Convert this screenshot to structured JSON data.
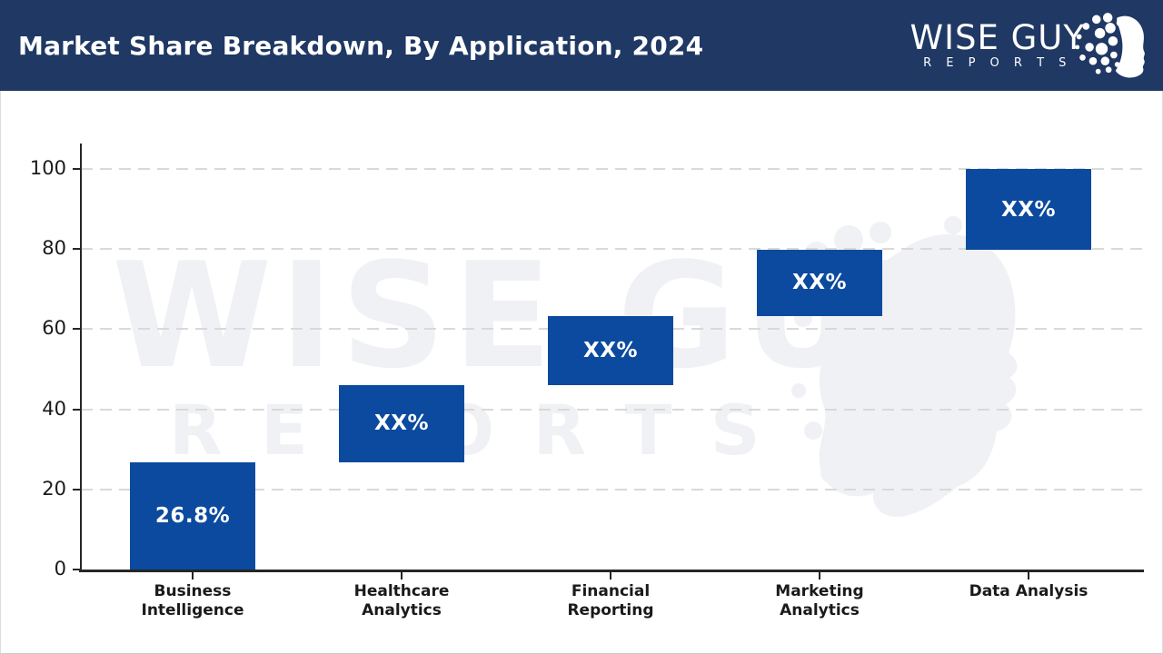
{
  "colors": {
    "header_bg": "#1f3864",
    "bar": "#0b4a9e",
    "axis": "#262626",
    "grid": "#d9d9d9",
    "tick_label": "#1a1a1a",
    "bar_label": "#ffffff",
    "watermark": "#f0f1f4"
  },
  "header": {
    "title": "Market Share Breakdown, By Application, 2024",
    "logo": {
      "line1": "WISE GUY",
      "line2": "R E P O R T S"
    }
  },
  "watermark": {
    "line1": "WISE GUY",
    "line2": "R E P O R T S"
  },
  "chart_data": {
    "type": "bar",
    "subtype": "waterfall",
    "title": "Market Share Breakdown, By Application, 2024",
    "xlabel": "",
    "ylabel": "",
    "ylim": [
      0,
      100
    ],
    "yticks": [
      0,
      20,
      40,
      60,
      80,
      100
    ],
    "grid": "horizontal-dashed",
    "legend": "none",
    "categories": [
      [
        "Business",
        "Intelligence"
      ],
      [
        "Healthcare",
        "Analytics"
      ],
      [
        "Financial",
        "Reporting"
      ],
      [
        "Marketing",
        "Analytics"
      ],
      [
        "Data Analysis"
      ]
    ],
    "segments": [
      {
        "category": "Business Intelligence",
        "label": "26.8%",
        "start": 0,
        "end": 26.8
      },
      {
        "category": "Healthcare Analytics",
        "label": "XX%",
        "start": 26.8,
        "end": 46.0
      },
      {
        "category": "Financial Reporting",
        "label": "XX%",
        "start": 46.0,
        "end": 63.3
      },
      {
        "category": "Marketing Analytics",
        "label": "XX%",
        "start": 63.3,
        "end": 79.8
      },
      {
        "category": "Data Analysis",
        "label": "XX%",
        "start": 79.8,
        "end": 100
      }
    ]
  }
}
